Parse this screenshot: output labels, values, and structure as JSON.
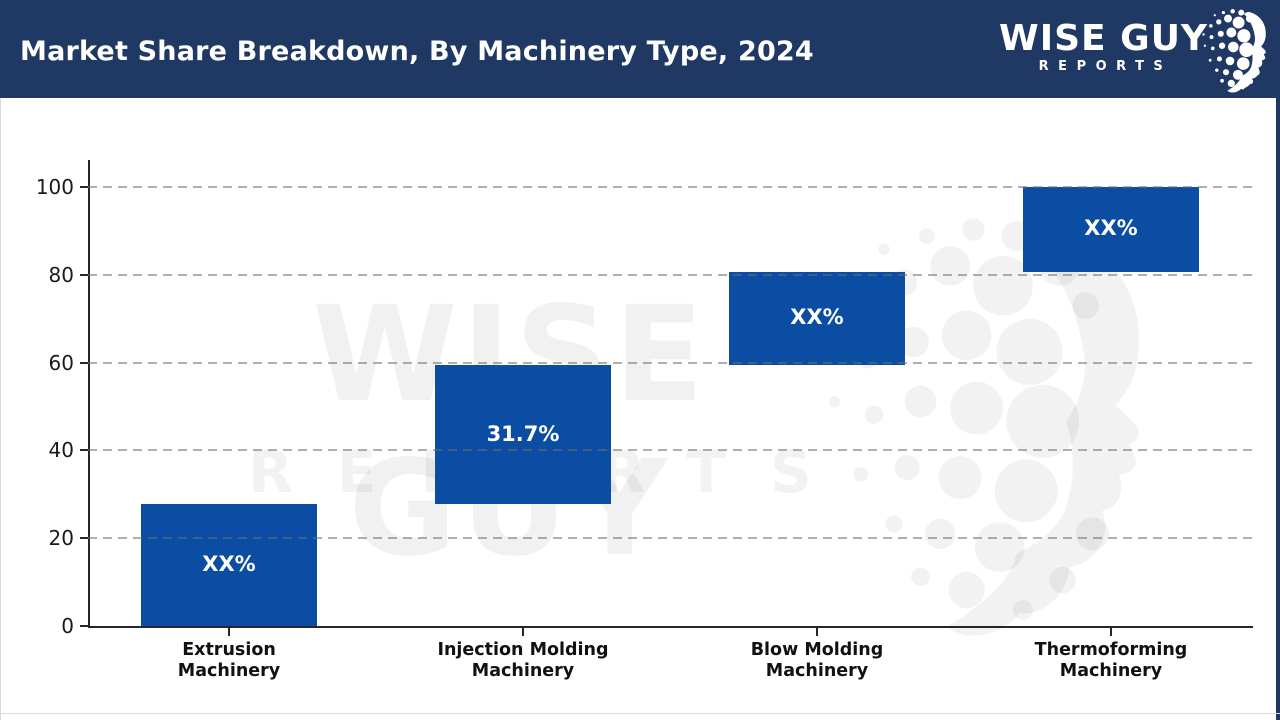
{
  "header": {
    "title": "Market Share Breakdown, By Machinery Type, 2024",
    "logo": {
      "line1": "WISE GUY",
      "line2": "REPORTS"
    }
  },
  "watermark": {
    "line1": "WISE GUY",
    "line2": "REPORTS"
  },
  "colors": {
    "header_bg": "#1f3864",
    "bar": "#0b4da2",
    "bar_label": "#ffffff",
    "axis": "#262626",
    "gridline": "rgba(110,110,110,0.55)"
  },
  "chart_data": {
    "type": "bar",
    "variant": "floating-segment-waterfall",
    "title": "Market Share Breakdown, By Machinery Type, 2024",
    "xlabel": "",
    "ylabel": "",
    "ylim": [
      0,
      100
    ],
    "yticks": [
      0,
      20,
      40,
      60,
      80,
      100
    ],
    "grid": "horizontal-dashed",
    "categories": [
      "Extrusion\nMachinery",
      "Injection Molding\nMachinery",
      "Blow Molding\nMachinery",
      "Thermoforming\nMachinery"
    ],
    "segments": [
      {
        "category": "Extrusion Machinery",
        "start": 0,
        "end": 27.7,
        "label": "XX%"
      },
      {
        "category": "Injection Molding Machinery",
        "start": 27.7,
        "end": 59.4,
        "label": "31.7%"
      },
      {
        "category": "Blow Molding Machinery",
        "start": 59.4,
        "end": 80.7,
        "label": "XX%"
      },
      {
        "category": "Thermoforming Machinery",
        "start": 80.7,
        "end": 100,
        "label": "XX%"
      }
    ]
  }
}
